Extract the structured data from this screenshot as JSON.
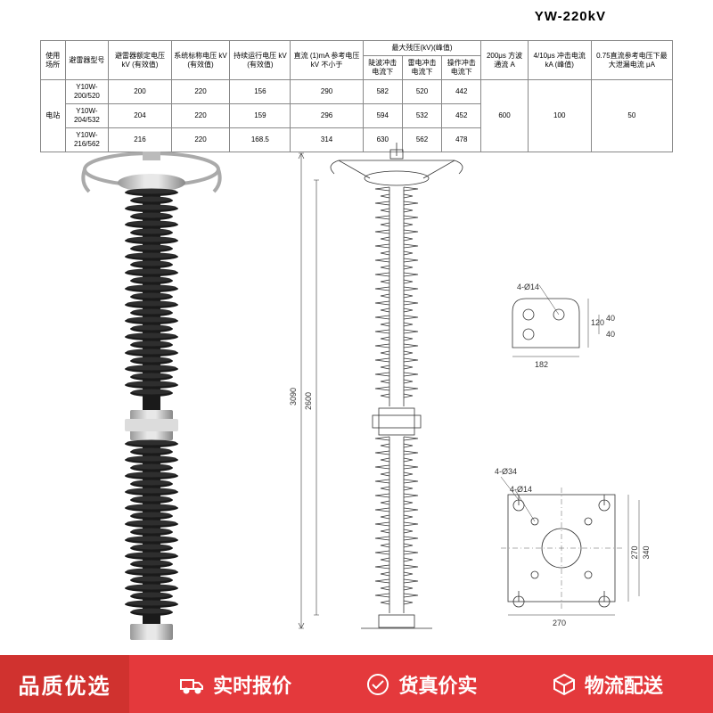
{
  "model_label": "YW-220kV",
  "table": {
    "headers_row1": [
      "使用场所",
      "避雷器型号",
      "避雷器额定电压 kV (有效值)",
      "系统标称电压 kV (有效值)",
      "持续运行电压 kV (有效值)",
      "直流 (1)mA 参考电压 kV 不小于",
      "最大残压(kV)(峰值)",
      "",
      "",
      "200μs 方波通流 A",
      "4/10μs 冲击电流 kA (峰值)",
      "0.75直流参考电压下最大泄漏电流 μA"
    ],
    "headers_row2": [
      "",
      "",
      "",
      "",
      "",
      "",
      "陡波冲击电流下",
      "雷电冲击电流下",
      "操作冲击电流下",
      "",
      "",
      ""
    ],
    "rows": [
      [
        "电站",
        "Y10W-200/520",
        "200",
        "220",
        "156",
        "290",
        "582",
        "520",
        "442",
        "600",
        "100",
        "50"
      ],
      [
        "",
        "Y10W-204/532",
        "204",
        "220",
        "159",
        "296",
        "594",
        "532",
        "452",
        "",
        "",
        ""
      ],
      [
        "",
        "Y10W-216/562",
        "216",
        "220",
        "168.5",
        "314",
        "630",
        "562",
        "478",
        "",
        "",
        ""
      ]
    ]
  },
  "drawing": {
    "height_overall": "3090",
    "height_inner": "2600",
    "term_label": "4-Ø14",
    "term_dim_a": "40",
    "term_dim_b": "40",
    "term_dim_c": "120",
    "term_dim_w": "182",
    "base_label_top": "4-Ø34",
    "base_label_mid": "4-Ø14",
    "base_dim_s": "270",
    "base_dim_h": "340"
  },
  "footer": {
    "badge": "品质优选",
    "items": [
      {
        "icon": "delivery",
        "text": "实时报价"
      },
      {
        "icon": "genuine",
        "text": "货真价实"
      },
      {
        "icon": "logistics",
        "text": "物流配送"
      }
    ]
  },
  "colors": {
    "banner_bg": "#e4393c",
    "banner_badge": "#d0322f",
    "text_dark": "#333333",
    "fin_dark": "#1a1a1a",
    "metal": "#c8c8c8"
  }
}
